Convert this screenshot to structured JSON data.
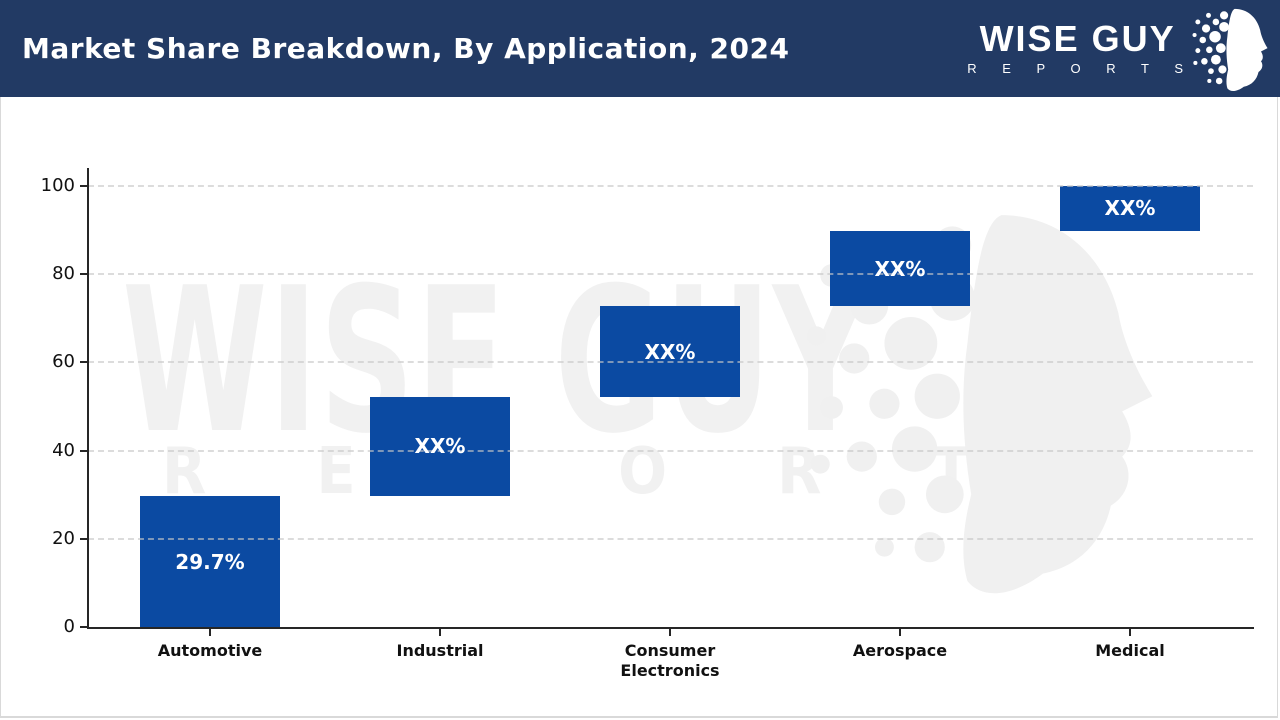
{
  "header": {
    "title": "Market Share Breakdown, By Application, 2024",
    "logo": {
      "line1": "WISE GUY",
      "line2": "R E P O R T S"
    }
  },
  "watermark": {
    "line1": "WISE GUY",
    "line2": "R E P O R T S"
  },
  "chart_data": {
    "type": "bar",
    "subtype": "waterfall",
    "title": "Market Share Breakdown, By Application, 2024",
    "categories": [
      "Automotive",
      "Industrial",
      "Consumer Electronics",
      "Aerospace",
      "Medical"
    ],
    "segments": [
      {
        "category": "Automotive",
        "start": 0,
        "end": 29.7,
        "label": "29.7%"
      },
      {
        "category": "Industrial",
        "start": 29.7,
        "end": 52.2,
        "label": "XX%"
      },
      {
        "category": "Consumer Electronics",
        "start": 52.2,
        "end": 72.7,
        "label": "XX%"
      },
      {
        "category": "Aerospace",
        "start": 72.7,
        "end": 89.8,
        "label": "XX%"
      },
      {
        "category": "Medical",
        "start": 89.8,
        "end": 100,
        "label": "XX%"
      }
    ],
    "y_ticks": [
      0,
      20,
      40,
      60,
      80,
      100
    ],
    "ylim": [
      0,
      100
    ],
    "xlabel": "",
    "ylabel": "",
    "grid": "horizontal-dashed",
    "legend": "none"
  },
  "colors": {
    "header_bg": "#223A64",
    "bar": "#0B4AA2",
    "axis": "#262626",
    "grid": "#c7c7c7",
    "watermark": "#f1f1f1",
    "value_label": "#ffffff"
  }
}
